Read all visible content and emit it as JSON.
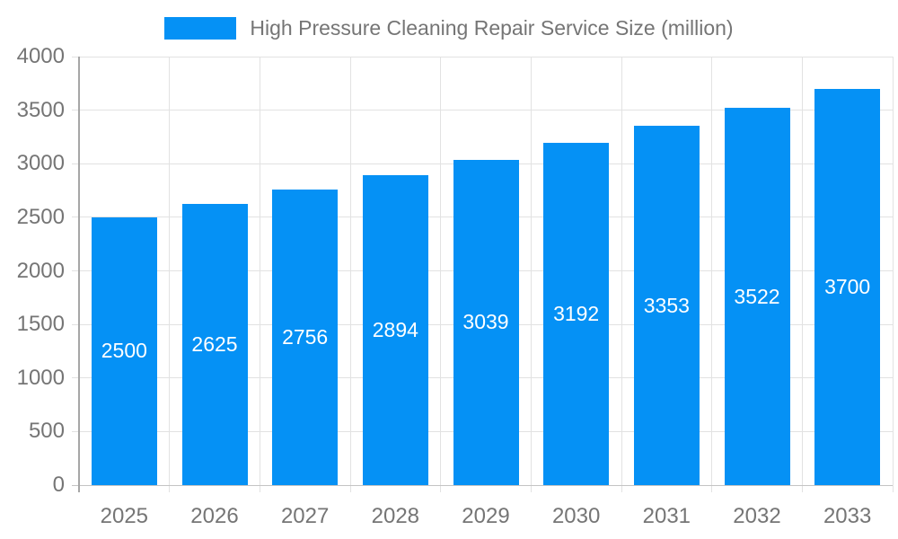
{
  "legend": {
    "label": "High Pressure Cleaning Repair Service Size (million)",
    "swatch_color": "#0591f5"
  },
  "chart_data": {
    "type": "bar",
    "title": "High Pressure Cleaning Repair Service Size (million)",
    "categories": [
      "2025",
      "2026",
      "2027",
      "2028",
      "2029",
      "2030",
      "2031",
      "2032",
      "2033"
    ],
    "values": [
      2500,
      2625,
      2756,
      2894,
      3039,
      3192,
      3353,
      3522,
      3700
    ],
    "xlabel": "",
    "ylabel": "",
    "ylim": [
      0,
      4000
    ],
    "ytick_step": 500,
    "ytick_labels": [
      "0",
      "500",
      "1000",
      "1500",
      "2000",
      "2500",
      "3000",
      "3500",
      "4000"
    ],
    "grid": true,
    "legend_position": "top-center",
    "value_labels": "inside-center",
    "colors": {
      "bar": "#0591f5",
      "value_label": "#ffffff",
      "axis_text": "#757575",
      "gridline": "#e2e2e2",
      "axis_line": "#a6a6a6",
      "baseline": "#c4c4c4",
      "background": "#ffffff"
    }
  }
}
